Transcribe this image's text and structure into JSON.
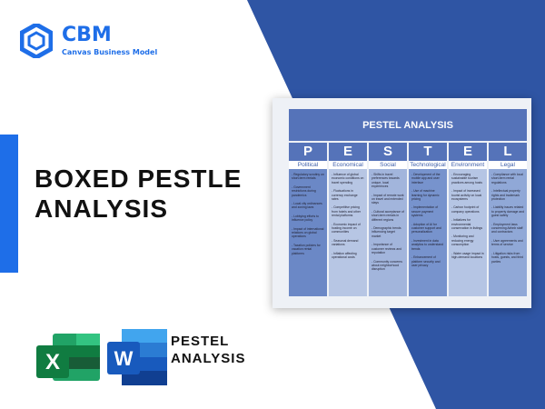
{
  "brand": {
    "name": "CBM",
    "tagline": "Canvas Business Model",
    "color": "#1e6ee8"
  },
  "title_lines": [
    "BOXED PESTLE",
    "ANALYSIS"
  ],
  "card": {
    "header": "PESTEL ANALYSIS",
    "columns": [
      {
        "letter": "P",
        "label": "Political",
        "color": "#6b88c6",
        "items": [
          "- Regulatory scrutiny on short-term rentals",
          "- Government restrictions during pandemics",
          "- Local city ordinances and zoning laws",
          "- Lobbying efforts to influence policy",
          "- Impact of international relations on global operations",
          "- Taxation policies for vacation rental platforms"
        ]
      },
      {
        "letter": "E",
        "label": "Economical",
        "color": "#b7c6e4",
        "items": [
          "- Influence of global economic conditions on travel spending",
          "- Fluctuations in currency exchange rates",
          "- Competitive pricing from hotels and other rental platforms",
          "- Economic impact of hosting income on communities",
          "- Seasonal demand variations",
          "- Inflation affecting operational costs"
        ]
      },
      {
        "letter": "S",
        "label": "Social",
        "color": "#a2b5dc",
        "items": [
          "- Shifts in travel preferences towards unique, local experiences",
          "- Impact of remote work on travel and extended stays",
          "- Cultural acceptance of short-term rentals in different regions",
          "- Demographic trends influencing target market",
          "- Importance of customer reviews and reputation",
          "- Community concerns about neighborhood disruption"
        ]
      },
      {
        "letter": "T",
        "label": "Technological",
        "color": "#7793cd",
        "items": [
          "- Development of the mobile app and user interface",
          "- Use of machine learning for dynamic pricing",
          "- Implementation of secure payment systems",
          "- Adoption of AI for customer support and personalization",
          "- Investment in data analytics to understand trends",
          "- Enhancement of platform security and user privacy"
        ]
      },
      {
        "letter": "E",
        "label": "Environment",
        "color": "#b5c5e4",
        "items": [
          "- Encouraging sustainable tourism practices among hosts",
          "- Impact of increased tourist activity on local ecosystems",
          "- Carbon footprint of company operations",
          "- Initiatives for environmental conservation in listings",
          "- Monitoring and reducing energy consumption",
          "- Water usage impact in high-demand locations"
        ]
      },
      {
        "letter": "L",
        "label": "Legal",
        "color": "#90a8d7",
        "items": [
          "- Compliance with local short-term rental regulations",
          "- Intellectual property rights and trademark protection",
          "- Liability issues related to property damage and guest safety",
          "- Employment laws concerning Airbnb staff and contractors",
          "- User agreements and terms of service",
          "- Litigation risks from hosts, guests, and third parties"
        ]
      }
    ]
  },
  "apps": [
    {
      "name": "excel-icon",
      "letter": "X",
      "color": "#1d7a45"
    },
    {
      "name": "word-icon",
      "letter": "W",
      "color": "#1e5bbf"
    }
  ],
  "pestel_label_lines": [
    "PESTEL",
    "ANALYSIS"
  ],
  "accent": "#2f55a4"
}
